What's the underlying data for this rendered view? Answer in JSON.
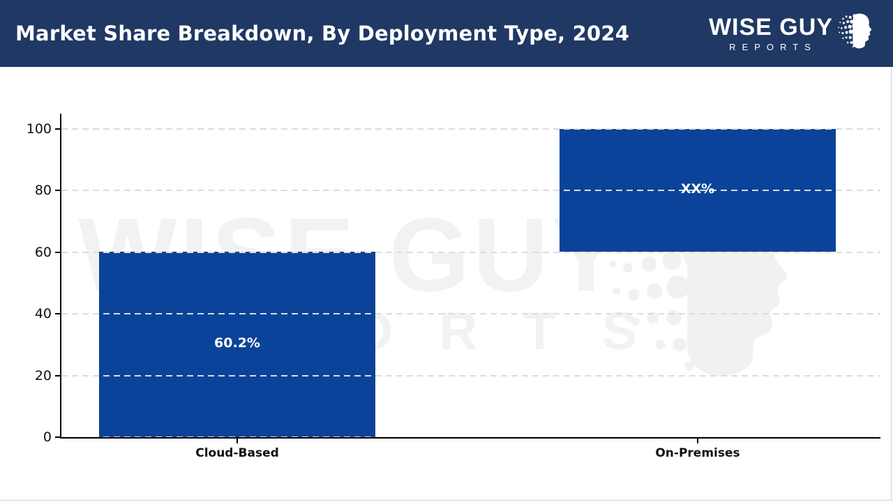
{
  "header": {
    "title": "Market Share Breakdown, By Deployment Type, 2024"
  },
  "logo": {
    "line1": "WISE GUY",
    "line2": "REPORTS"
  },
  "watermark": {
    "line1": "WISE GUY",
    "line2": "REPORTS"
  },
  "chart_data": {
    "type": "bar",
    "subtype": "floating-segment-bars",
    "title": "Market Share Breakdown, By Deployment Type, 2024",
    "categories": [
      "Cloud-Based",
      "On-Premises"
    ],
    "bars": [
      {
        "category": "Cloud-Based",
        "start": 0,
        "end": 60.2,
        "label": "60.2%"
      },
      {
        "category": "On-Premises",
        "start": 60.2,
        "end": 100,
        "label": "XX%"
      }
    ],
    "xlabel": "",
    "ylabel": "",
    "yticks": [
      "0",
      "20",
      "40",
      "60",
      "80",
      "100"
    ],
    "ylim": [
      0,
      105
    ],
    "grid": "horizontal-dashed",
    "legend": "none",
    "colors": {
      "bar": "#0a4399",
      "bar_label": "#ffffff",
      "grid": "#dcdcdc",
      "axis": "#000000",
      "tick_label": "#111111",
      "header_bg": "#1f3864",
      "header_text": "#ffffff",
      "watermark": "#f2f2f2"
    }
  }
}
